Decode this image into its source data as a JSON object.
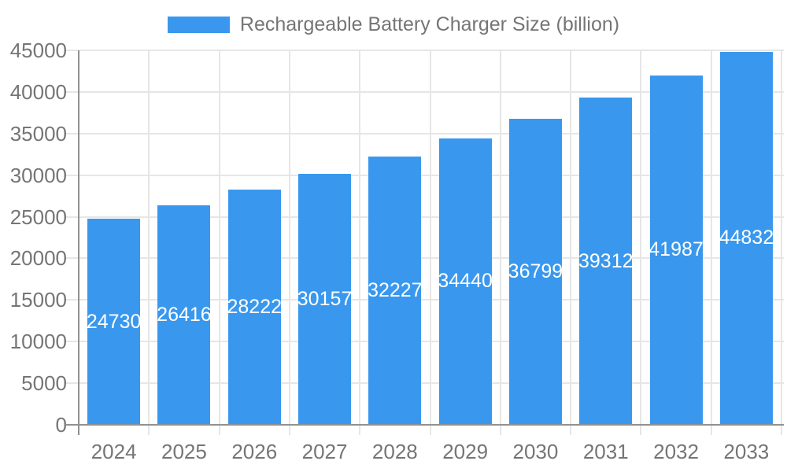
{
  "chart_data": {
    "type": "bar",
    "title": "Rechargeable Battery Charger Size (billion)",
    "legend": {
      "position": "top",
      "entries": [
        "Rechargeable Battery Charger Size (billion)"
      ]
    },
    "categories": [
      "2024",
      "2025",
      "2026",
      "2027",
      "2028",
      "2029",
      "2030",
      "2031",
      "2032",
      "2033"
    ],
    "series": [
      {
        "name": "Rechargeable Battery Charger Size (billion)",
        "values": [
          24730,
          26416,
          28222,
          30157,
          32227,
          34440,
          36799,
          39312,
          41987,
          44832
        ]
      }
    ],
    "value_labels": [
      "24730",
      "26416",
      "28222",
      "30157",
      "32227",
      "34440",
      "36799",
      "39312",
      "41987",
      "44832"
    ],
    "xlabel": "",
    "ylabel": "",
    "ylim": [
      0,
      45000
    ],
    "yticks": [
      0,
      5000,
      10000,
      15000,
      20000,
      25000,
      30000,
      35000,
      40000,
      45000
    ],
    "grid": "horizontal-and-vertical",
    "colors": {
      "bar": "#3998EE",
      "axis_text": "#757575",
      "axis_line": "#919191",
      "gridline": "#e6e6e6",
      "value_label": "#ffffff",
      "background": "#ffffff"
    }
  }
}
